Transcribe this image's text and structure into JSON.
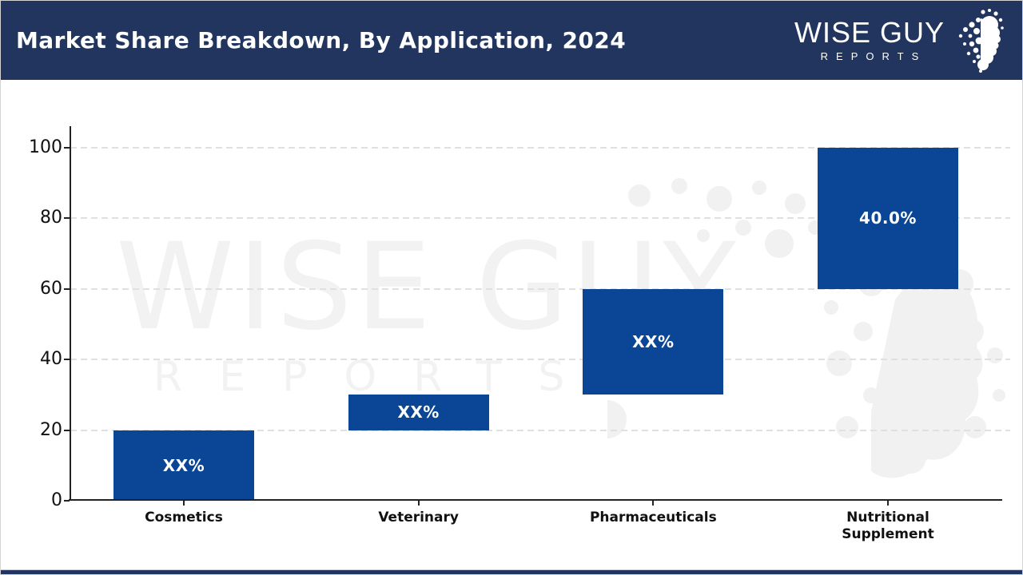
{
  "header": {
    "title": "Market Share Breakdown, By Application, 2024",
    "logo": {
      "line1": "WISE GUY",
      "line2": "REPORTS",
      "icon": "dotted-head-profile-icon"
    }
  },
  "watermark": {
    "line1": "WISE GUY",
    "line2": "REPORTS"
  },
  "colors": {
    "header_navy": "#21355e",
    "bar_blue": "#0a4596",
    "gridline_gray": "#e0e0e0",
    "watermark_gray": "#f2f2f2",
    "axis_black": "#222222"
  },
  "chart_data": {
    "type": "bar",
    "subtype": "waterfall",
    "title": "Market Share Breakdown, By Application, 2024",
    "xlabel": "",
    "ylabel": "",
    "ylim": [
      0,
      100
    ],
    "yticks": [
      0,
      20,
      40,
      60,
      80,
      100
    ],
    "grid": "horizontal-dashed",
    "legend": "none",
    "bar_color": "#0a4596",
    "categories": [
      "Cosmetics",
      "Veterinary",
      "Pharmaceuticals",
      "Nutritional Supplement"
    ],
    "segments": [
      {
        "category": "Cosmetics",
        "from": 0,
        "to": 20,
        "label": "XX%"
      },
      {
        "category": "Veterinary",
        "from": 20,
        "to": 30,
        "label": "XX%"
      },
      {
        "category": "Pharmaceuticals",
        "from": 30,
        "to": 60,
        "label": "XX%"
      },
      {
        "category": "Nutritional Supplement",
        "from": 60,
        "to": 100,
        "label": "40.0%"
      }
    ]
  }
}
